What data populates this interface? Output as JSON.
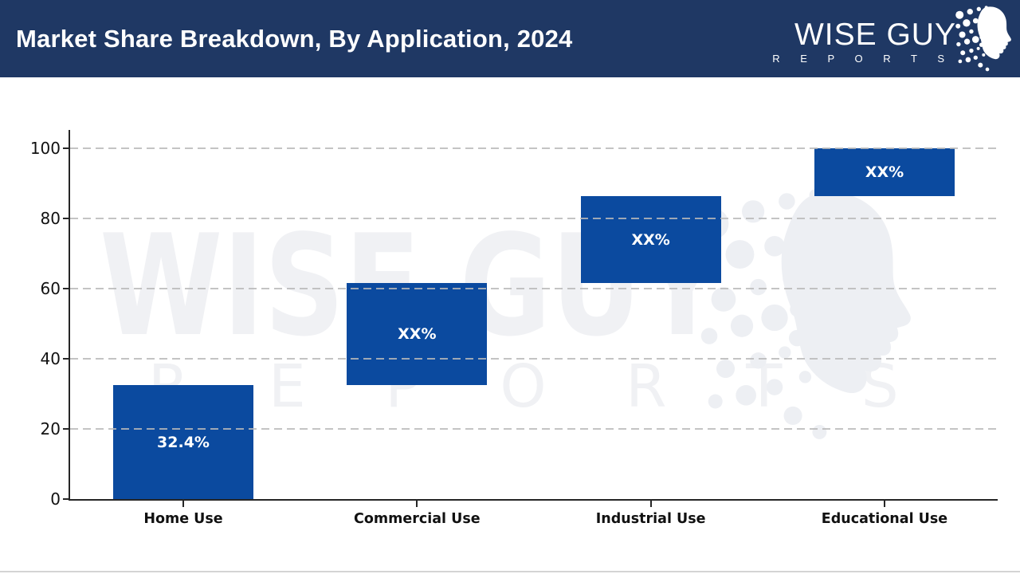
{
  "header": {
    "title": "Market Share Breakdown, By Application, 2024",
    "logo": {
      "name": "WISE GUY",
      "sub": "R E P O R T S"
    }
  },
  "watermark": {
    "name": "WISE GUY",
    "sub": "R E P O R T S"
  },
  "chart_data": {
    "type": "bar",
    "subtype": "waterfall",
    "title": "Market Share Breakdown, By Application, 2024",
    "categories": [
      "Home Use",
      "Commercial Use",
      "Industrial Use",
      "Educational Use"
    ],
    "segments": [
      {
        "from": 0,
        "to": 32.4
      },
      {
        "from": 32.4,
        "to": 61.5
      },
      {
        "from": 61.5,
        "to": 86.4
      },
      {
        "from": 86.4,
        "to": 100
      }
    ],
    "bar_labels": [
      "32.4%",
      "XX%",
      "XX%",
      "XX%"
    ],
    "yticks": [
      0,
      20,
      40,
      60,
      80,
      100
    ],
    "ylim": [
      0,
      105
    ],
    "grid": "dashed-horizontal",
    "legend": "none",
    "bar_color": "#0b4a9f",
    "bar_label_color": "#ffffff"
  },
  "colors": {
    "header_bg": "#1f3864",
    "axis": "#262626",
    "gridline": "#d8d8d8",
    "watermark": "#f0f1f4"
  }
}
